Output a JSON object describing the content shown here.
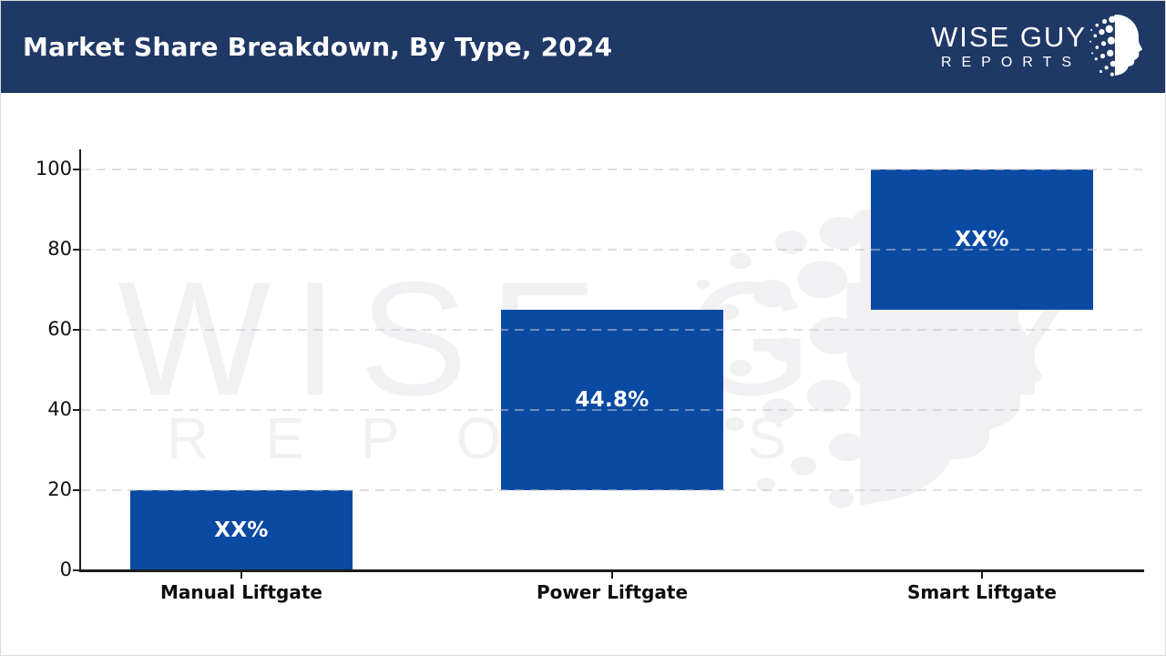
{
  "header": {
    "title": "Market Share Breakdown, By Type, 2024",
    "logo": {
      "line1": "WISE GUY",
      "line2": "REPORTS"
    }
  },
  "watermark": {
    "line1": "WISE GUY",
    "line2": "REPORTS"
  },
  "chart_data": {
    "type": "bar",
    "subtype": "floating stacked segments (market-share breakdown, each bar starts where the previous ends)",
    "title": "Market Share Breakdown, By Type, 2024",
    "categories": [
      "Manual Liftgate",
      "Power Liftgate",
      "Smart Liftgate"
    ],
    "segments": [
      {
        "category": "Manual Liftgate",
        "start": 0,
        "end": 20.1,
        "label": "XX%"
      },
      {
        "category": "Power Liftgate",
        "start": 20.1,
        "end": 64.9,
        "label": "44.8%"
      },
      {
        "category": "Smart Liftgate",
        "start": 64.9,
        "end": 100,
        "label": "XX%"
      }
    ],
    "yticks": [
      0,
      20,
      40,
      60,
      80,
      100
    ],
    "ylim": [
      0,
      105
    ],
    "xlabel": "",
    "ylabel": "",
    "grid": "horizontal dashed gridlines, drawn over bars",
    "legend": "none"
  },
  "colors": {
    "header_bg": "#1f3865",
    "bar": "#0b4aa2",
    "bar_label": "#ffffff",
    "axis": "#1c1c1c",
    "grid": "#e4e6ea",
    "watermark": "#f1f1f3",
    "card_border": "#d9d9d9",
    "title_text": "#ffffff",
    "tick_text": "#111111"
  }
}
